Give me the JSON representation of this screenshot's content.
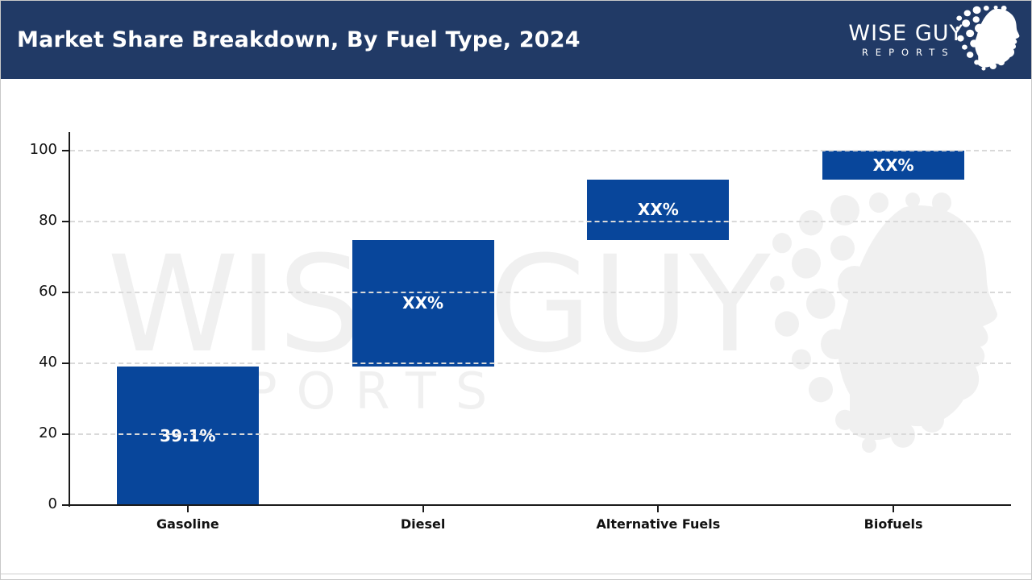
{
  "header": {
    "title": "Market Share Breakdown, By Fuel Type, 2024",
    "background_color": "#213a66",
    "logo": {
      "name": "WISE GUY",
      "subtitle": "REPORTS",
      "icon": "dotted-face-profile"
    }
  },
  "watermark": {
    "line1": "WISE GUY",
    "line2": "REPORTS",
    "icon": "dotted-face-profile",
    "color": "#f0f0f0"
  },
  "chart_data": {
    "type": "bar",
    "subtype": "waterfall",
    "title": "Market Share Breakdown, By Fuel Type, 2024",
    "xlabel": "",
    "ylabel": "",
    "categories": [
      "Gasoline",
      "Diesel",
      "Alternative Fuels",
      "Biofuels"
    ],
    "segments": [
      {
        "category": "Gasoline",
        "start": 0,
        "end": 39.1,
        "value": 39.1,
        "label": "39.1%"
      },
      {
        "category": "Diesel",
        "start": 39.1,
        "end": 74.8,
        "value": 35.7,
        "label": "XX%"
      },
      {
        "category": "Alternative Fuels",
        "start": 74.8,
        "end": 91.8,
        "value": 17.0,
        "label": "XX%"
      },
      {
        "category": "Biofuels",
        "start": 91.8,
        "end": 100,
        "value": 8.2,
        "label": "XX%"
      }
    ],
    "yticks": [
      0,
      20,
      40,
      60,
      80,
      100
    ],
    "ylim": [
      0,
      105
    ],
    "grid": "horizontal-dashed",
    "legend": "none",
    "bar_color": "#08469b",
    "bar_label_color": "#ffffff",
    "axis_color": "#1a1a1a",
    "grid_color": "#d9d9d9"
  }
}
